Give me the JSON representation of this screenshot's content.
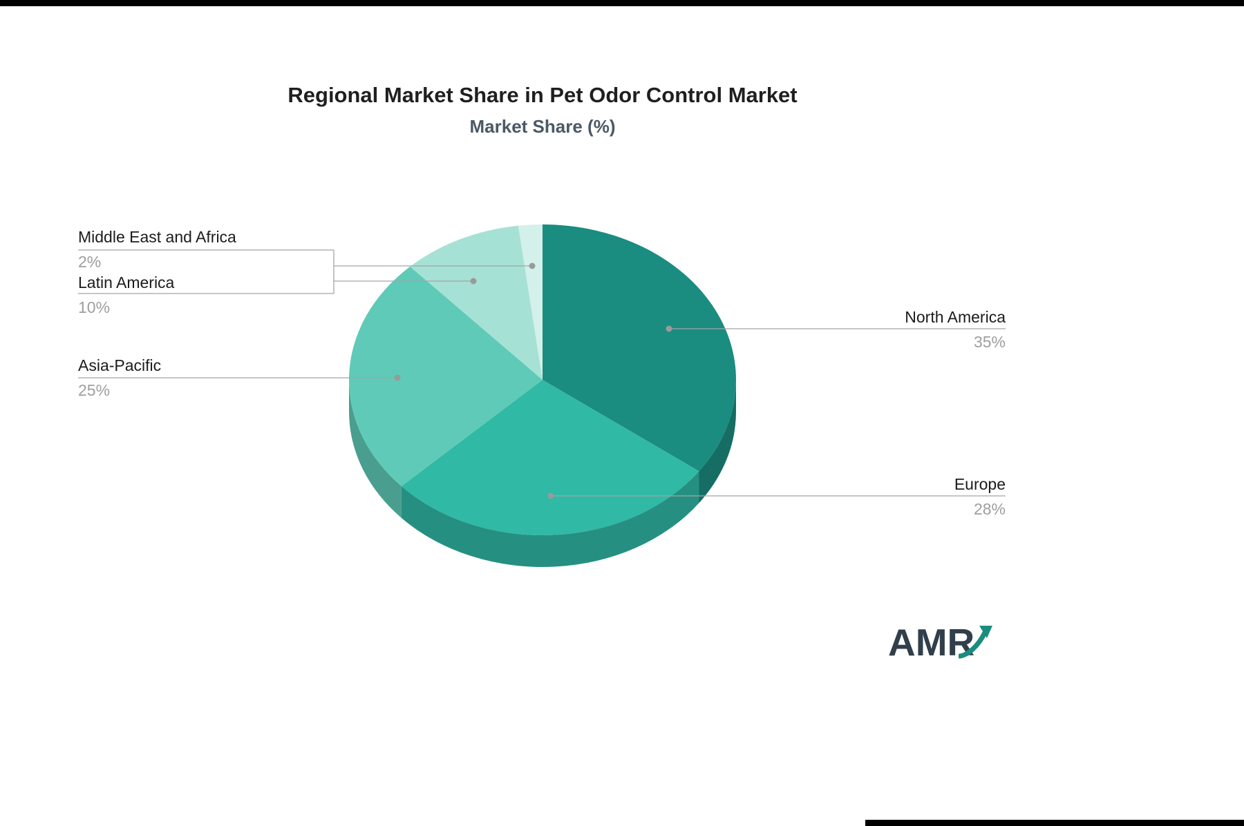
{
  "chart_data": {
    "type": "pie",
    "title": "Regional Market Share in Pet Odor Control Market",
    "subtitle": "Market Share (%)",
    "categories": [
      "North America",
      "Europe",
      "Asia-Pacific",
      "Latin America",
      "Middle East and Africa"
    ],
    "values": [
      35,
      28,
      25,
      10,
      2
    ],
    "value_labels": [
      "35%",
      "28%",
      "25%",
      "10%",
      "2%"
    ],
    "colors": [
      "#1b8c80",
      "#30b9a5",
      "#5fcab7",
      "#a6e1d5",
      "#d4f0ea"
    ],
    "start_angle_deg": -90,
    "direction": "clockwise",
    "style": "3d-pie",
    "legend": "none",
    "label_color": "#1b1b1b",
    "percent_color": "#9e9e9e",
    "leader_line_color": "#a5a5a5"
  },
  "logo": {
    "text": "AMR",
    "arrow_color": "#1b8c80"
  }
}
